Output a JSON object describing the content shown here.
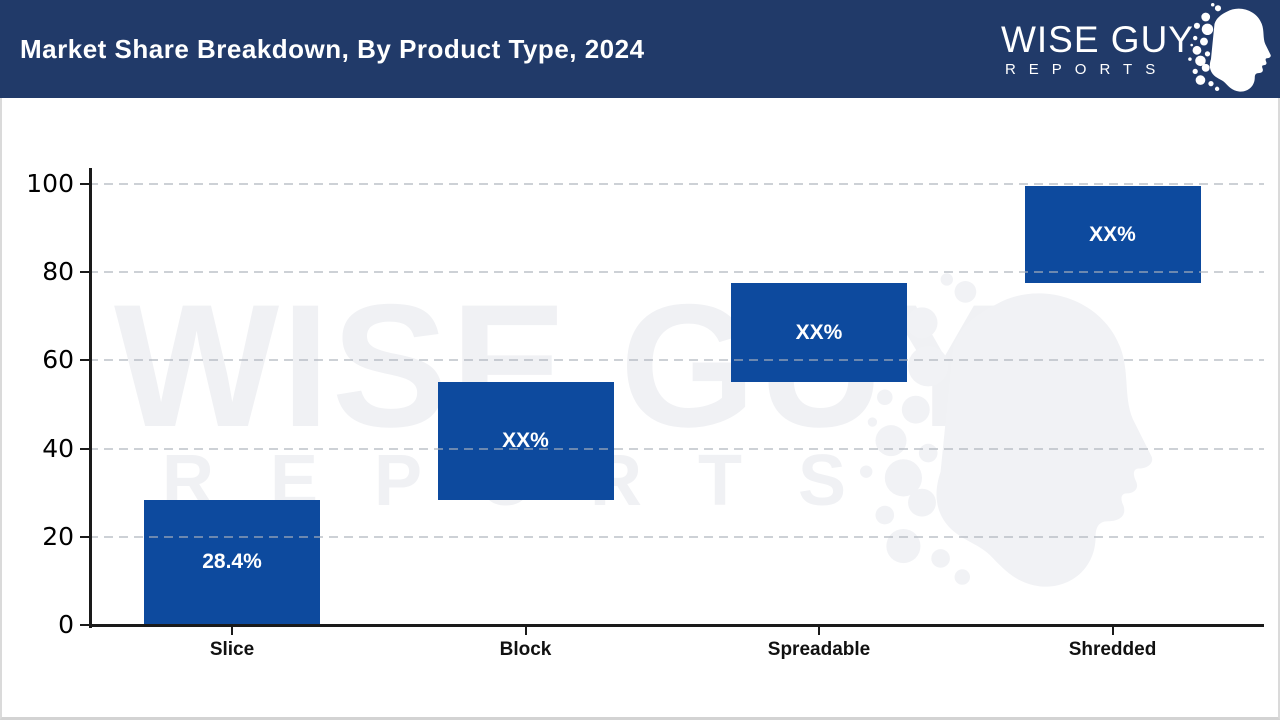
{
  "header": {
    "title": "Market Share Breakdown, By Product Type, 2024",
    "bg_color": "#213a69",
    "logo": {
      "line1": "WISE GUY",
      "line2": "REPORTS"
    }
  },
  "watermark": {
    "line1": "WISE GUY",
    "line2": "REPORTS"
  },
  "chart_data": {
    "type": "bar",
    "subtype": "waterfall",
    "title": "Market Share Breakdown, By Product Type, 2024",
    "categories": [
      "Slice",
      "Block",
      "Spreadable",
      "Shredded"
    ],
    "segments": [
      [
        0,
        28.4
      ],
      [
        28.4,
        55.0
      ],
      [
        55.0,
        77.5
      ],
      [
        77.5,
        99.5
      ]
    ],
    "bar_labels": [
      "28.4%",
      "XX%",
      "XX%",
      "XX%"
    ],
    "yticks": [
      0,
      20,
      40,
      60,
      80,
      100
    ],
    "ylim": [
      0,
      104
    ],
    "xlabel": "",
    "ylabel": "",
    "grid": "dashed-horizontal",
    "legend": "none",
    "bar_color": "#0d4a9e",
    "bar_label_color": "#ffffff",
    "axis_color": "#1a1a1a"
  }
}
